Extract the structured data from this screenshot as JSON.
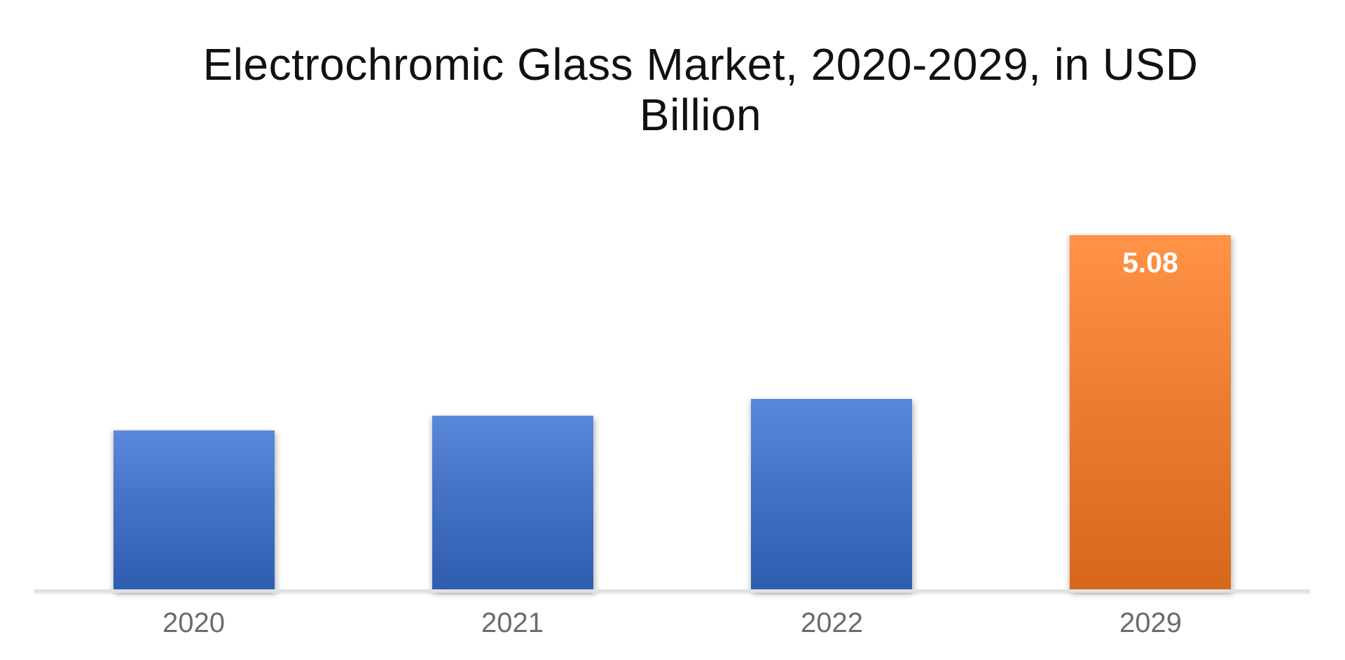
{
  "page": {
    "background": "#FFFFFF"
  },
  "title": {
    "text": "Electrochromic Glass Market, 2020-2029, in USD Billion",
    "color": "#111111"
  },
  "axis": {
    "line_color": "#E1E1E1",
    "tick_label_color": "#6B6B6B"
  },
  "colors": {
    "bar_blue": "#4472C4",
    "bar_orange": "#ED7D31",
    "data_label_text": "#FFFFFF"
  },
  "chart_data": {
    "type": "bar",
    "title": "Electrochromic Glass Market, 2020-2029, in USD Billion",
    "categories": [
      "2020",
      "2021",
      "2022",
      "2029"
    ],
    "values": [
      2.3,
      2.51,
      2.74,
      5.08
    ],
    "bar_colors": [
      "#4472C4",
      "#4472C4",
      "#4472C4",
      "#ED7D31"
    ],
    "data_labels": [
      "",
      "",
      "",
      "5.08"
    ],
    "xlabel": "",
    "ylabel": "",
    "ylim": [
      0,
      5.6
    ],
    "grid": false,
    "legend": false,
    "y_axis_visible": false,
    "x_baseline_visible": true
  }
}
